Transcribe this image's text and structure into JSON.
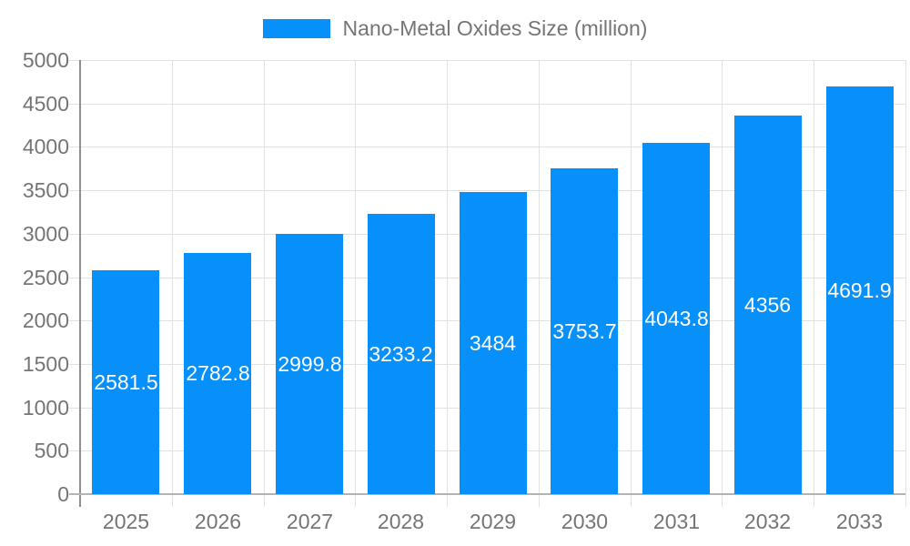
{
  "chart_data": {
    "type": "bar",
    "title": "Nano-Metal Oxides Size (million)",
    "series_name": "Nano-Metal Oxides Size (million)",
    "categories": [
      "2025",
      "2026",
      "2027",
      "2028",
      "2029",
      "2030",
      "2031",
      "2032",
      "2033"
    ],
    "values": [
      2581.5,
      2782.8,
      2999.8,
      3233.2,
      3484,
      3753.7,
      4043.8,
      4356,
      4691.9
    ],
    "value_labels": [
      "2581.5",
      "2782.8",
      "2999.8",
      "3233.2",
      "3484",
      "3753.7",
      "4043.8",
      "4356",
      "4691.9"
    ],
    "xlabel": "",
    "ylabel": "",
    "ylim": [
      0,
      5000
    ],
    "yticks": [
      0,
      500,
      1000,
      1500,
      2000,
      2500,
      3000,
      3500,
      4000,
      4500,
      5000
    ],
    "ytick_labels": [
      "0",
      "500",
      "1000",
      "1500",
      "2000",
      "2500",
      "3000",
      "3500",
      "4000",
      "4500",
      "5000"
    ],
    "grid": true,
    "legend_position": "top-center",
    "value_label_position": "inside-center"
  },
  "colors": {
    "bar": "#0890fa",
    "grid": "#e2e2e2",
    "tick": "#e2e2e2",
    "y_axis_line": "#8f8f8f",
    "x_axis_line": "#b3b3b3",
    "axis_text": "#757575",
    "legend_text": "#757575",
    "value_label_text": "#ffffff",
    "background": "#ffffff"
  }
}
